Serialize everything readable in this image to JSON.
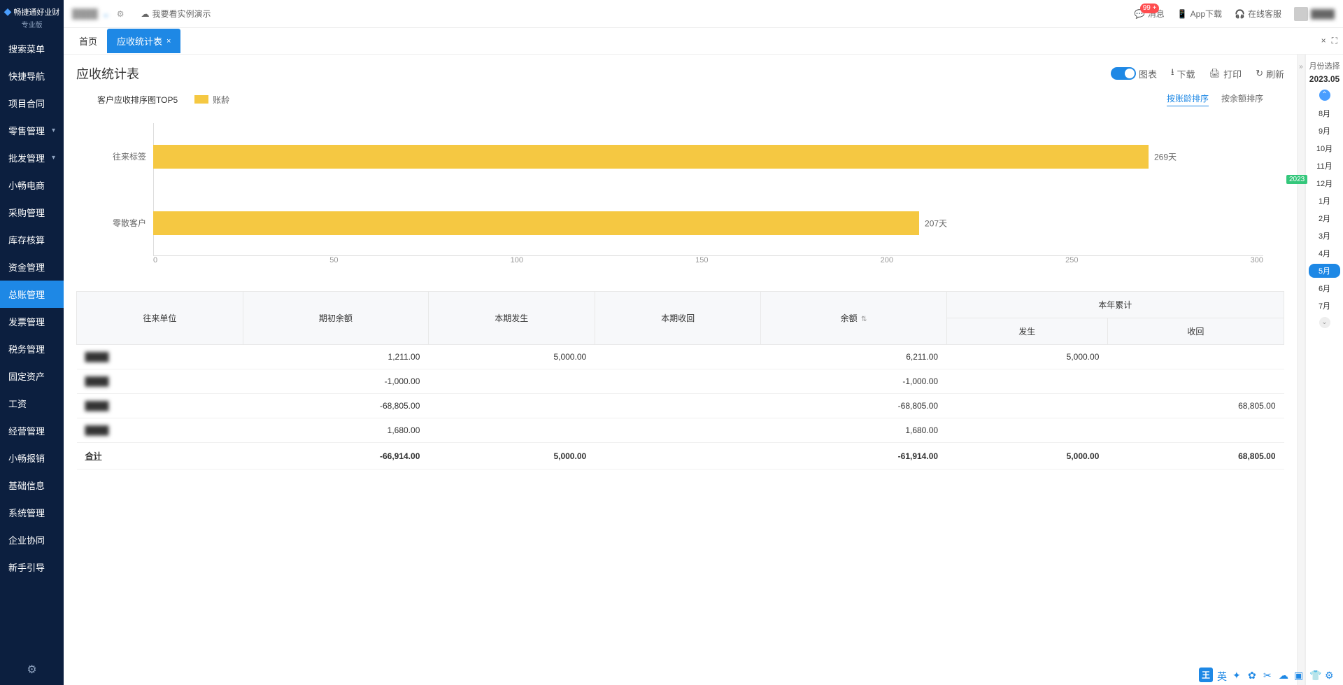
{
  "app": {
    "logo_text": "畅捷通好业财",
    "logo_sub": "专业版"
  },
  "sidebar": {
    "items": [
      {
        "label": "搜索菜单",
        "chevron": false
      },
      {
        "label": "快捷导航",
        "chevron": false
      },
      {
        "label": "项目合同",
        "chevron": false
      },
      {
        "label": "零售管理",
        "chevron": true
      },
      {
        "label": "批发管理",
        "chevron": true
      },
      {
        "label": "小畅电商",
        "chevron": false
      },
      {
        "label": "采购管理",
        "chevron": false
      },
      {
        "label": "库存核算",
        "chevron": false
      },
      {
        "label": "资金管理",
        "chevron": false
      },
      {
        "label": "总账管理",
        "chevron": false,
        "active": true
      },
      {
        "label": "发票管理",
        "chevron": false
      },
      {
        "label": "税务管理",
        "chevron": false
      },
      {
        "label": "固定资产",
        "chevron": false
      },
      {
        "label": "工资",
        "chevron": false
      },
      {
        "label": "经营管理",
        "chevron": false
      },
      {
        "label": "小畅报销",
        "chevron": false
      },
      {
        "label": "基础信息",
        "chevron": false
      },
      {
        "label": "系统管理",
        "chevron": false
      },
      {
        "label": "企业协同",
        "chevron": false
      },
      {
        "label": "新手引导",
        "chevron": false
      }
    ]
  },
  "topbar": {
    "company": "████",
    "gear_title": "设置",
    "demo_text": "我要看实例演示",
    "msg_label": "消息",
    "msg_badge": "99 +",
    "app_label": "App下载",
    "service_label": "在线客服",
    "user_name": "████"
  },
  "tabs": {
    "home": "首页",
    "active": "应收统计表"
  },
  "page": {
    "title": "应收统计表",
    "toggle_label": "图表",
    "download": "下载",
    "print": "打印",
    "refresh": "刷新"
  },
  "chart": {
    "title": "客户应收排序图TOP5",
    "legend": "账龄",
    "sort_by_age": "按账龄排序",
    "sort_by_amount": "按余额排序",
    "type": "horizontal-bar",
    "bar_color": "#f5c842",
    "background_color": "#ffffff",
    "axis_color": "#dddddd",
    "label_fontsize": 12,
    "x_ticks": [
      "0",
      "50",
      "100",
      "150",
      "200",
      "250",
      "300"
    ],
    "x_max": 300,
    "bars": [
      {
        "label": "往来标签",
        "value": 269,
        "display": "269天"
      },
      {
        "label": "零散客户",
        "value": 207,
        "display": "207天"
      }
    ]
  },
  "table": {
    "columns": {
      "c1": "往来单位",
      "c2": "期初余额",
      "c3": "本期发生",
      "c4": "本期收回",
      "c5": "余额",
      "c6": "本年累计",
      "c6a": "发生",
      "c6b": "收回"
    },
    "rows": [
      {
        "unit": "████",
        "begin": "1,211.00",
        "occur": "5,000.00",
        "recover": "",
        "balance": "6,211.00",
        "y_occur": "5,000.00",
        "y_recover": ""
      },
      {
        "unit": "████",
        "begin": "-1,000.00",
        "occur": "",
        "recover": "",
        "balance": "-1,000.00",
        "y_occur": "",
        "y_recover": ""
      },
      {
        "unit": "████",
        "begin": "-68,805.00",
        "occur": "",
        "recover": "",
        "balance": "-68,805.00",
        "y_occur": "",
        "y_recover": "68,805.00"
      },
      {
        "unit": "████",
        "begin": "1,680.00",
        "occur": "",
        "recover": "",
        "balance": "1,680.00",
        "y_occur": "",
        "y_recover": ""
      }
    ],
    "total": {
      "label": "合计",
      "begin": "-66,914.00",
      "occur": "5,000.00",
      "recover": "",
      "balance": "-61,914.00",
      "y_occur": "5,000.00",
      "y_recover": "68,805.00"
    }
  },
  "months": {
    "title": "月份选择",
    "date": "2023.05",
    "year_badge": "2023",
    "list": [
      "8月",
      "9月",
      "10月",
      "11月",
      "12月",
      "1月",
      "2月",
      "3月",
      "4月",
      "5月",
      "6月",
      "7月"
    ],
    "active_index": 9
  },
  "taskbar": {
    "ime": "王",
    "lang": "英"
  }
}
